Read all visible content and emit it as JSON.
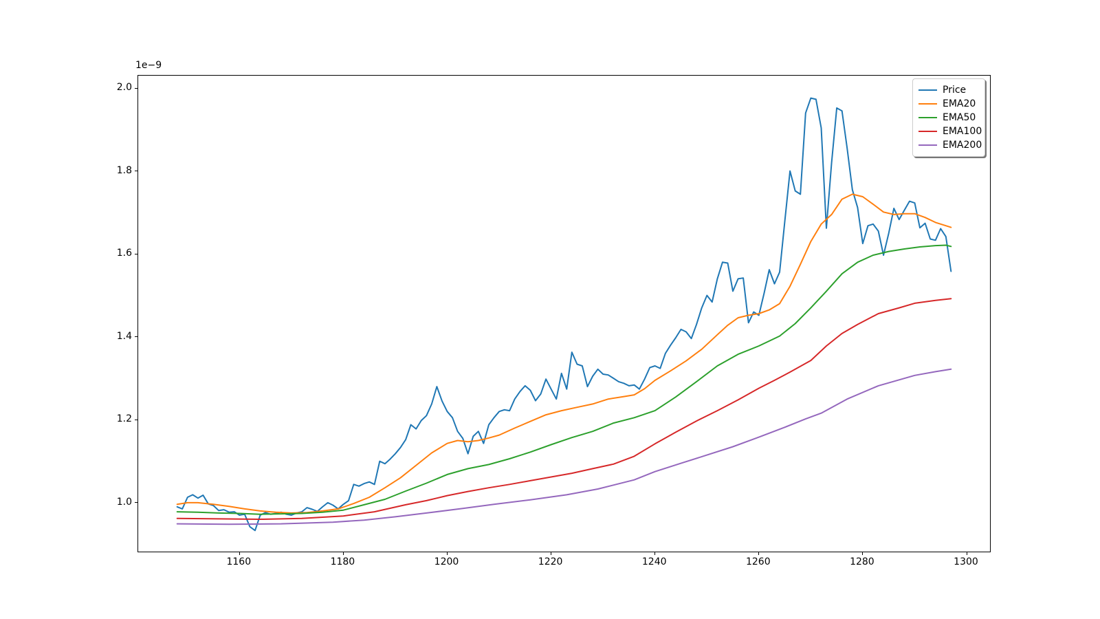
{
  "chart_data": {
    "type": "line",
    "title": "",
    "xlabel": "",
    "ylabel": "",
    "offset_label": "1e−9",
    "grid": false,
    "background_color": "#ffffff",
    "spine_color": "#000000",
    "xlim": [
      1140.5,
      1304.5
    ],
    "ylim": [
      0.882,
      2.03
    ],
    "y_scale_factor": 1e-09,
    "x_ticks": [
      1160,
      1180,
      1200,
      1220,
      1240,
      1260,
      1280,
      1300
    ],
    "x_tick_labels": [
      "1160",
      "1180",
      "1200",
      "1220",
      "1240",
      "1260",
      "1280",
      "1300"
    ],
    "y_ticks": [
      1.0,
      1.2,
      1.4,
      1.6,
      1.8,
      2.0
    ],
    "y_tick_labels": [
      "1.0",
      "1.2",
      "1.4",
      "1.6",
      "1.8",
      "2.0"
    ],
    "legend": {
      "position": "upper right",
      "entries": [
        {
          "label": "Price",
          "color": "#1f77b4"
        },
        {
          "label": "EMA20",
          "color": "#ff7f0e"
        },
        {
          "label": "EMA50",
          "color": "#2ca02c"
        },
        {
          "label": "EMA100",
          "color": "#d62728"
        },
        {
          "label": "EMA200",
          "color": "#9467bd"
        }
      ]
    },
    "series": [
      {
        "name": "Price",
        "color": "#1f77b4",
        "x_start": 1148,
        "x_step": 1,
        "y": [
          0.99,
          0.985,
          1.013,
          1.019,
          1.011,
          1.018,
          0.997,
          0.993,
          0.981,
          0.983,
          0.977,
          0.978,
          0.97,
          0.972,
          0.942,
          0.933,
          0.97,
          0.976,
          0.972,
          0.974,
          0.977,
          0.972,
          0.97,
          0.975,
          0.978,
          0.988,
          0.984,
          0.979,
          0.99,
          1.0,
          0.994,
          0.985,
          0.996,
          1.005,
          1.044,
          1.04,
          1.046,
          1.05,
          1.044,
          1.1,
          1.094,
          1.105,
          1.118,
          1.133,
          1.152,
          1.188,
          1.178,
          1.198,
          1.21,
          1.238,
          1.28,
          1.245,
          1.22,
          1.205,
          1.172,
          1.155,
          1.118,
          1.16,
          1.172,
          1.143,
          1.188,
          1.205,
          1.22,
          1.224,
          1.222,
          1.25,
          1.268,
          1.282,
          1.271,
          1.246,
          1.262,
          1.298,
          1.274,
          1.25,
          1.312,
          1.274,
          1.363,
          1.334,
          1.33,
          1.28,
          1.305,
          1.322,
          1.31,
          1.308,
          1.3,
          1.292,
          1.288,
          1.282,
          1.284,
          1.274,
          1.298,
          1.326,
          1.33,
          1.324,
          1.36,
          1.38,
          1.398,
          1.418,
          1.412,
          1.396,
          1.43,
          1.47,
          1.5,
          1.484,
          1.54,
          1.58,
          1.578,
          1.51,
          1.54,
          1.542,
          1.434,
          1.46,
          1.452,
          1.505,
          1.562,
          1.528,
          1.556,
          1.68,
          1.8,
          1.752,
          1.744,
          1.94,
          1.976,
          1.973,
          1.904,
          1.662,
          1.82,
          1.952,
          1.945,
          1.855,
          1.755,
          1.712,
          1.625,
          1.668,
          1.672,
          1.655,
          1.597,
          1.65,
          1.71,
          1.683,
          1.705,
          1.727,
          1.723,
          1.663,
          1.674,
          1.636,
          1.633,
          1.661,
          1.642,
          1.558
        ]
      },
      {
        "name": "EMA20",
        "color": "#ff7f0e",
        "x": [
          1148,
          1150,
          1152,
          1155,
          1158,
          1161,
          1164,
          1167,
          1170,
          1173,
          1176,
          1179,
          1182,
          1185,
          1188,
          1191,
          1194,
          1197,
          1200,
          1202,
          1204,
          1206,
          1208,
          1210,
          1213,
          1216,
          1219,
          1222,
          1225,
          1228,
          1231,
          1234,
          1236,
          1238,
          1240,
          1243,
          1246,
          1249,
          1252,
          1254,
          1256,
          1258,
          1260,
          1262,
          1264,
          1266,
          1268,
          1270,
          1272,
          1274,
          1276,
          1278,
          1280,
          1282,
          1284,
          1286,
          1288,
          1290,
          1292,
          1294,
          1296,
          1297
        ],
        "y": [
          0.996,
          1.0,
          1.0,
          0.996,
          0.991,
          0.985,
          0.98,
          0.977,
          0.975,
          0.976,
          0.98,
          0.985,
          0.998,
          1.013,
          1.036,
          1.06,
          1.09,
          1.12,
          1.143,
          1.15,
          1.147,
          1.15,
          1.156,
          1.163,
          1.18,
          1.196,
          1.212,
          1.222,
          1.23,
          1.238,
          1.25,
          1.256,
          1.26,
          1.275,
          1.295,
          1.318,
          1.342,
          1.37,
          1.405,
          1.428,
          1.446,
          1.452,
          1.456,
          1.465,
          1.48,
          1.522,
          1.575,
          1.63,
          1.672,
          1.695,
          1.732,
          1.744,
          1.738,
          1.72,
          1.701,
          1.695,
          1.697,
          1.697,
          1.688,
          1.676,
          1.668,
          1.664
        ]
      },
      {
        "name": "EMA50",
        "color": "#2ca02c",
        "x": [
          1148,
          1152,
          1156,
          1160,
          1164,
          1168,
          1172,
          1176,
          1180,
          1184,
          1188,
          1192,
          1196,
          1200,
          1204,
          1208,
          1212,
          1216,
          1220,
          1224,
          1228,
          1232,
          1236,
          1240,
          1244,
          1248,
          1252,
          1256,
          1260,
          1264,
          1267,
          1270,
          1273,
          1276,
          1279,
          1282,
          1285,
          1288,
          1291,
          1294,
          1296,
          1297
        ],
        "y": [
          0.978,
          0.977,
          0.975,
          0.974,
          0.972,
          0.973,
          0.974,
          0.977,
          0.982,
          0.995,
          1.008,
          1.028,
          1.047,
          1.068,
          1.082,
          1.092,
          1.106,
          1.122,
          1.14,
          1.157,
          1.172,
          1.192,
          1.205,
          1.222,
          1.255,
          1.292,
          1.33,
          1.358,
          1.378,
          1.402,
          1.432,
          1.47,
          1.51,
          1.552,
          1.58,
          1.597,
          1.606,
          1.612,
          1.617,
          1.62,
          1.621,
          1.618
        ]
      },
      {
        "name": "EMA100",
        "color": "#d62728",
        "x": [
          1148,
          1156,
          1164,
          1172,
          1180,
          1186,
          1192,
          1196,
          1200,
          1204,
          1208,
          1212,
          1216,
          1220,
          1224,
          1228,
          1232,
          1236,
          1240,
          1244,
          1248,
          1252,
          1256,
          1260,
          1263,
          1266,
          1270,
          1273,
          1276,
          1279,
          1283,
          1287,
          1290,
          1294,
          1297
        ],
        "y": [
          0.962,
          0.961,
          0.96,
          0.962,
          0.968,
          0.978,
          0.995,
          1.005,
          1.017,
          1.027,
          1.036,
          1.044,
          1.053,
          1.062,
          1.071,
          1.082,
          1.093,
          1.112,
          1.142,
          1.17,
          1.197,
          1.222,
          1.248,
          1.276,
          1.295,
          1.315,
          1.343,
          1.378,
          1.408,
          1.43,
          1.456,
          1.47,
          1.481,
          1.488,
          1.492
        ]
      },
      {
        "name": "EMA200",
        "color": "#9467bd",
        "x": [
          1148,
          1158,
          1168,
          1178,
          1184,
          1190,
          1196,
          1203,
          1209,
          1216,
          1223,
          1229,
          1236,
          1240,
          1245,
          1250,
          1255,
          1260,
          1265,
          1269,
          1272,
          1277,
          1283,
          1290,
          1294,
          1297
        ],
        "y": [
          0.949,
          0.948,
          0.949,
          0.953,
          0.958,
          0.966,
          0.975,
          0.986,
          0.996,
          1.007,
          1.019,
          1.033,
          1.055,
          1.075,
          1.095,
          1.115,
          1.135,
          1.158,
          1.182,
          1.202,
          1.216,
          1.25,
          1.282,
          1.307,
          1.316,
          1.322
        ]
      }
    ]
  }
}
